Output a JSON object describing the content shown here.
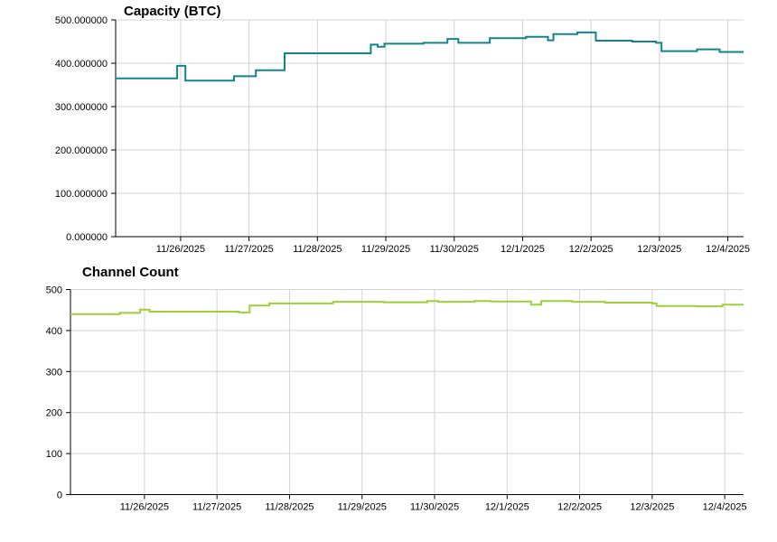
{
  "page": {
    "background": "#ffffff"
  },
  "style": {
    "grid_color": "#d3d3d3",
    "axis_color": "#000000",
    "text_color": "#000000"
  },
  "chart_data": [
    {
      "type": "line",
      "title": "Capacity (BTC)",
      "xlabel": "",
      "ylabel": "",
      "legend": "none",
      "grid": true,
      "line_style": "step-after",
      "line_color": "#11858a",
      "ylim": [
        0,
        500
      ],
      "xlim_days": [
        0.05,
        9.23
      ],
      "y_ticks": [
        {
          "value": 0,
          "label": "0.000000"
        },
        {
          "value": 100,
          "label": "100.000000"
        },
        {
          "value": 200,
          "label": "200.000000"
        },
        {
          "value": 300,
          "label": "300.000000"
        },
        {
          "value": 400,
          "label": "400.000000"
        },
        {
          "value": 500,
          "label": "500.000000"
        }
      ],
      "x_ticks": [
        {
          "value": 1,
          "label": "11/26/2025"
        },
        {
          "value": 2,
          "label": "11/27/2025"
        },
        {
          "value": 3,
          "label": "11/28/2025"
        },
        {
          "value": 4,
          "label": "11/29/2025"
        },
        {
          "value": 5,
          "label": "11/30/2025"
        },
        {
          "value": 6,
          "label": "12/1/2025"
        },
        {
          "value": 7,
          "label": "12/2/2025"
        },
        {
          "value": 8,
          "label": "12/3/2025"
        },
        {
          "value": 9,
          "label": "12/4/2025"
        }
      ],
      "series": [
        {
          "name": "Capacity (BTC)",
          "points": [
            [
              0.05,
              365
            ],
            [
              0.95,
              394
            ],
            [
              1.07,
              360
            ],
            [
              1.78,
              370
            ],
            [
              2.1,
              384
            ],
            [
              2.52,
              423
            ],
            [
              3.78,
              443
            ],
            [
              3.88,
              438
            ],
            [
              3.98,
              445
            ],
            [
              4.55,
              447
            ],
            [
              4.9,
              456
            ],
            [
              5.06,
              447
            ],
            [
              5.52,
              458
            ],
            [
              6.05,
              461
            ],
            [
              6.37,
              453
            ],
            [
              6.45,
              467
            ],
            [
              6.8,
              471
            ],
            [
              7.07,
              452
            ],
            [
              7.6,
              450
            ],
            [
              7.95,
              447
            ],
            [
              8.03,
              428
            ],
            [
              8.55,
              432
            ],
            [
              8.88,
              426
            ],
            [
              9.23,
              426
            ]
          ]
        }
      ]
    },
    {
      "type": "line",
      "title": "Channel Count",
      "xlabel": "",
      "ylabel": "",
      "legend": "none",
      "grid": true,
      "line_style": "step-after",
      "line_color": "#9fce3a",
      "ylim": [
        0,
        500
      ],
      "xlim_days": [
        -0.02,
        9.26
      ],
      "y_ticks": [
        {
          "value": 0,
          "label": "0"
        },
        {
          "value": 100,
          "label": "100"
        },
        {
          "value": 200,
          "label": "200"
        },
        {
          "value": 300,
          "label": "300"
        },
        {
          "value": 400,
          "label": "400"
        },
        {
          "value": 500,
          "label": "500"
        }
      ],
      "x_ticks": [
        {
          "value": 1,
          "label": "11/26/2025"
        },
        {
          "value": 2,
          "label": "11/27/2025"
        },
        {
          "value": 3,
          "label": "11/28/2025"
        },
        {
          "value": 4,
          "label": "11/29/2025"
        },
        {
          "value": 5,
          "label": "11/30/2025"
        },
        {
          "value": 6,
          "label": "12/1/2025"
        },
        {
          "value": 7,
          "label": "12/2/2025"
        },
        {
          "value": 8,
          "label": "12/3/2025"
        },
        {
          "value": 9,
          "label": "12/4/2025"
        }
      ],
      "series": [
        {
          "name": "Channel Count",
          "points": [
            [
              -0.02,
              440
            ],
            [
              0.66,
              443
            ],
            [
              0.94,
              451
            ],
            [
              1.07,
              446
            ],
            [
              2.3,
              444
            ],
            [
              2.45,
              461
            ],
            [
              2.72,
              466
            ],
            [
              3.6,
              470
            ],
            [
              4.3,
              469
            ],
            [
              4.9,
              472
            ],
            [
              5.05,
              470
            ],
            [
              5.55,
              472
            ],
            [
              5.78,
              471
            ],
            [
              6.33,
              463
            ],
            [
              6.47,
              472
            ],
            [
              6.9,
              470
            ],
            [
              7.35,
              468
            ],
            [
              8.0,
              466
            ],
            [
              8.06,
              460
            ],
            [
              8.6,
              459
            ],
            [
              8.97,
              463
            ],
            [
              9.26,
              463
            ]
          ]
        }
      ]
    }
  ]
}
